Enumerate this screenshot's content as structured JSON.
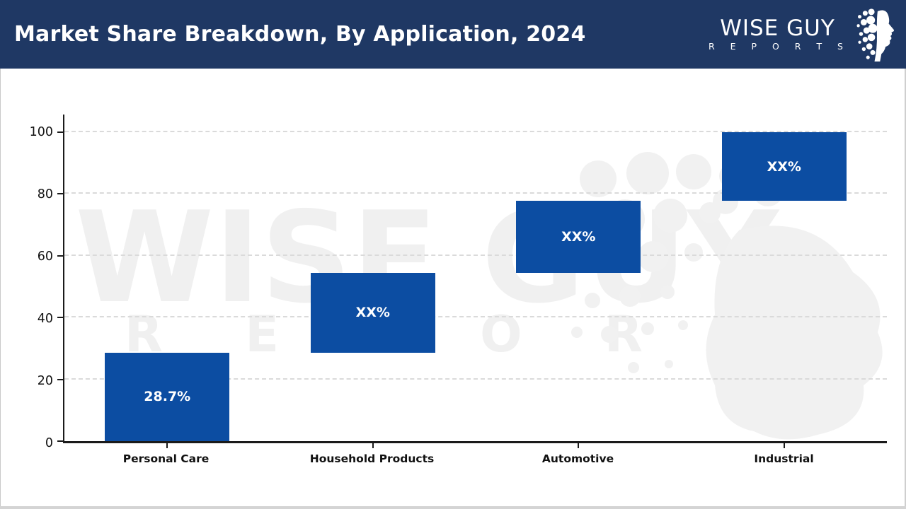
{
  "header": {
    "title": "Market Share Breakdown, By Application, 2024",
    "background_color": "#1f3864",
    "logo": {
      "line1": "WISE GUY",
      "line2": "R E P O R T S"
    }
  },
  "watermark": {
    "line1": "WISE GUY",
    "line2": "R E P O R T S"
  },
  "chart_data": {
    "type": "bar",
    "subtype": "waterfall",
    "title": "Market Share Breakdown, By Application, 2024",
    "categories": [
      "Personal Care",
      "Household Products",
      "Automotive",
      "Industrial"
    ],
    "segments": [
      {
        "category": "Personal Care",
        "start": 0,
        "end": 28.7,
        "label": "28.7%"
      },
      {
        "category": "Household Products",
        "start": 28.7,
        "end": 54.5,
        "label": "XX%"
      },
      {
        "category": "Automotive",
        "start": 54.5,
        "end": 77.7,
        "label": "XX%"
      },
      {
        "category": "Industrial",
        "start": 77.7,
        "end": 100,
        "label": "XX%"
      }
    ],
    "yticks": [
      0,
      20,
      40,
      60,
      80,
      100
    ],
    "ylim": [
      0,
      105.7
    ],
    "xlabel": "",
    "ylabel": "",
    "grid": "horizontal-dashed",
    "legend": "none",
    "bar_color": "#0c4da2",
    "bar_label_color": "#ffffff",
    "axis_color": "#1a1a1a",
    "grid_color": "#dadada"
  }
}
